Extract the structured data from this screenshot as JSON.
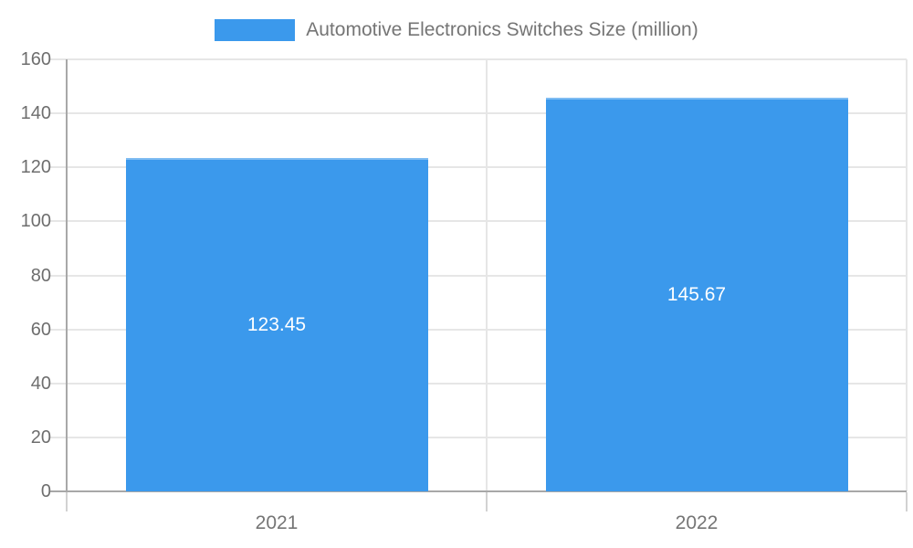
{
  "legend": {
    "position": "top",
    "items": [
      {
        "label": "Automotive Electronics Switches Size (million)",
        "color": "#3b99ec"
      }
    ]
  },
  "chart_data": {
    "type": "bar",
    "title": "",
    "categories": [
      "2021",
      "2022"
    ],
    "series": [
      {
        "name": "Automotive Electronics Switches Size (million)",
        "color": "#3b99ec",
        "values": [
          123.45,
          145.67
        ],
        "data_labels": [
          "123.45",
          "145.67"
        ]
      }
    ],
    "xlabel": "",
    "ylabel": "",
    "ylim": [
      0,
      160
    ],
    "y_ticks": [
      0,
      20,
      40,
      60,
      80,
      100,
      120,
      140,
      160
    ],
    "grid": true,
    "legend_position": "top",
    "colors": {
      "bar": "#3b99ec",
      "bar_label_text": "#ffffff",
      "gridline": "#e6e6e6",
      "axis_line": "#a8a8a8",
      "tick_mark": "#d2d2d2",
      "y_tick_text": "#6e6e6e",
      "x_label_text": "#757575",
      "legend_text": "#757575",
      "background": "#ffffff"
    }
  }
}
